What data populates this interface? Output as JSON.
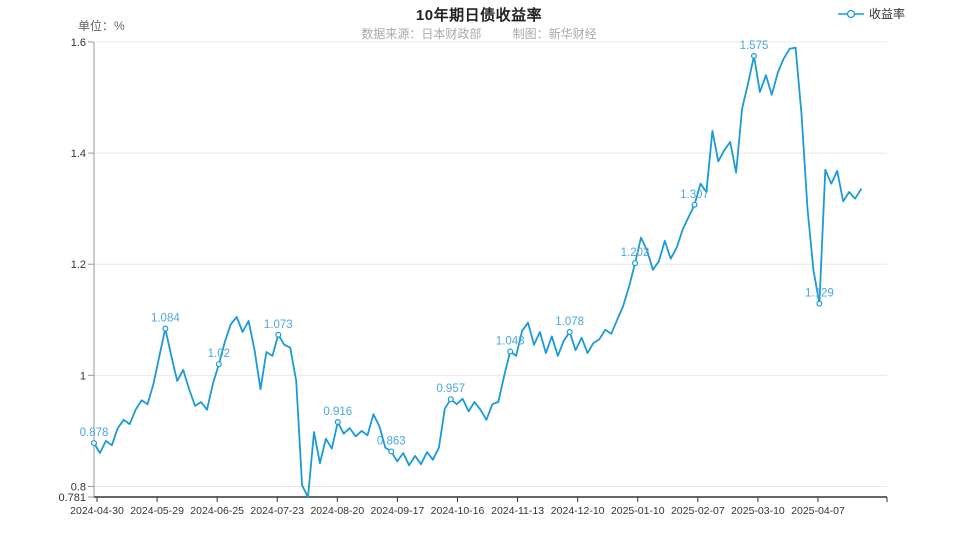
{
  "header": {
    "title": "10年期日债收益率",
    "subtitle_source_label": "数据来源：日本财政部",
    "subtitle_maker_label": "制图：新华财经",
    "unit_label": "单位：%"
  },
  "legend": {
    "series_label": "收益率"
  },
  "chart_data": {
    "type": "line",
    "title": "10年期日债收益率",
    "series_name": "收益率",
    "unit": "%",
    "grid": true,
    "legend_position": "top-right",
    "ylim": [
      0.781,
      1.6
    ],
    "y_ticks": [
      {
        "v": 1.6,
        "label": "1.6"
      },
      {
        "v": 1.4,
        "label": "1.4"
      },
      {
        "v": 1.2,
        "label": "1.2"
      },
      {
        "v": 1.0,
        "label": "1"
      },
      {
        "v": 0.8,
        "label": "0.8"
      },
      {
        "v": 0.781,
        "label": "0.781",
        "axis": true
      }
    ],
    "x_ticks": [
      "2024-04-30",
      "2024-05-29",
      "2024-06-25",
      "2024-07-23",
      "2024-08-20",
      "2024-09-17",
      "2024-10-16",
      "2024-11-13",
      "2024-12-10",
      "2025-01-10",
      "2025-02-07",
      "2025-03-10",
      "2025-04-07"
    ],
    "values": [
      0.878,
      0.86,
      0.882,
      0.874,
      0.905,
      0.92,
      0.912,
      0.938,
      0.955,
      0.948,
      0.985,
      1.035,
      1.084,
      1.035,
      0.99,
      1.01,
      0.975,
      0.945,
      0.952,
      0.938,
      0.985,
      1.02,
      1.06,
      1.092,
      1.105,
      1.078,
      1.098,
      1.046,
      0.975,
      1.042,
      1.035,
      1.073,
      1.055,
      1.05,
      0.99,
      0.802,
      0.781,
      0.898,
      0.842,
      0.886,
      0.868,
      0.916,
      0.895,
      0.905,
      0.89,
      0.9,
      0.892,
      0.93,
      0.908,
      0.87,
      0.863,
      0.845,
      0.86,
      0.838,
      0.855,
      0.84,
      0.862,
      0.848,
      0.87,
      0.94,
      0.957,
      0.948,
      0.958,
      0.935,
      0.952,
      0.938,
      0.92,
      0.948,
      0.952,
      1.0,
      1.043,
      1.035,
      1.08,
      1.095,
      1.055,
      1.078,
      1.04,
      1.07,
      1.035,
      1.062,
      1.078,
      1.045,
      1.068,
      1.04,
      1.058,
      1.065,
      1.082,
      1.075,
      1.1,
      1.125,
      1.16,
      1.202,
      1.248,
      1.225,
      1.19,
      1.205,
      1.242,
      1.21,
      1.23,
      1.262,
      1.285,
      1.307,
      1.345,
      1.33,
      1.44,
      1.385,
      1.405,
      1.42,
      1.365,
      1.48,
      1.525,
      1.575,
      1.51,
      1.54,
      1.505,
      1.545,
      1.57,
      1.588,
      1.59,
      1.47,
      1.3,
      1.19,
      1.129,
      1.37,
      1.345,
      1.368,
      1.313,
      1.33,
      1.318,
      1.335
    ],
    "labeled_points": [
      {
        "index": 0,
        "label": "0.878"
      },
      {
        "index": 12,
        "label": "1.084"
      },
      {
        "index": 21,
        "label": "1.02"
      },
      {
        "index": 31,
        "label": "1.073"
      },
      {
        "index": 41,
        "label": "0.916"
      },
      {
        "index": 50,
        "label": "0.863"
      },
      {
        "index": 60,
        "label": "0.957"
      },
      {
        "index": 70,
        "label": "1.043"
      },
      {
        "index": 80,
        "label": "1.078"
      },
      {
        "index": 91,
        "label": "1.202"
      },
      {
        "index": 101,
        "label": "1.307"
      },
      {
        "index": 111,
        "label": "1.575"
      },
      {
        "index": 122,
        "label": "1.129"
      }
    ],
    "colors": {
      "line": "#1a9ad6",
      "point_label": "#4da6e0",
      "grid": "#e8e8e8",
      "y_axis": "#999999",
      "x_axis": "#333333",
      "tick_text": "#333333"
    }
  }
}
